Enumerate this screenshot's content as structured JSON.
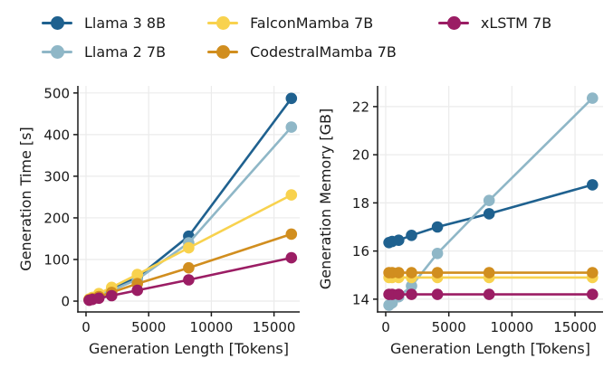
{
  "figure": {
    "background": "#ffffff",
    "text_color": "#1a1a1a",
    "grid_color": "#ebebeb",
    "spine_color": "#1a1a1a"
  },
  "legend": {
    "position": "top",
    "items": [
      {
        "label": "Llama 3 8B",
        "color": "#1f618f"
      },
      {
        "label": "Llama 2 7B",
        "color": "#8fb7c7"
      },
      {
        "label": "FalconMamba 7B",
        "color": "#f8d24e"
      },
      {
        "label": "CodestralMamba 7B",
        "color": "#d18e1f"
      },
      {
        "label": "xLSTM 7B",
        "color": "#9b1d64"
      }
    ]
  },
  "chart_data": [
    {
      "type": "line",
      "title": "",
      "xlabel": "Generation Length [Tokens]",
      "ylabel": "Generation Time [s]",
      "x": [
        256,
        512,
        1024,
        2048,
        4096,
        8192,
        16384
      ],
      "xticks": [
        0,
        5000,
        10000,
        15000
      ],
      "yticks": [
        0,
        100,
        200,
        300,
        400,
        500
      ],
      "xlim": [
        -650,
        17050
      ],
      "ylim": [
        -26,
        517
      ],
      "grid": true,
      "markers": true,
      "series": [
        {
          "name": "Llama 3 8B",
          "color": "#1f618f",
          "values": [
            4,
            8,
            15,
            29,
            57,
            156,
            487
          ]
        },
        {
          "name": "Llama 2 7B",
          "color": "#8fb7c7",
          "values": [
            3.5,
            7,
            14,
            26,
            52,
            140,
            418
          ]
        },
        {
          "name": "FalconMamba 7B",
          "color": "#f8d24e",
          "values": [
            5,
            9,
            18,
            33,
            64,
            128,
            255
          ]
        },
        {
          "name": "CodestralMamba 7B",
          "color": "#d18e1f",
          "values": [
            3,
            6,
            11,
            21,
            42,
            80,
            161
          ]
        },
        {
          "name": "xLSTM 7B",
          "color": "#9b1d64",
          "values": [
            2,
            4,
            7,
            13,
            26,
            51,
            104
          ]
        }
      ]
    },
    {
      "type": "line",
      "title": "",
      "xlabel": "Generation Length [Tokens]",
      "ylabel": "Generation Memory [GB]",
      "x": [
        256,
        512,
        1024,
        2048,
        4096,
        8192,
        16384
      ],
      "xticks": [
        0,
        5000,
        10000,
        15000
      ],
      "yticks": [
        14,
        16,
        18,
        20,
        22
      ],
      "xlim": [
        -645,
        17220
      ],
      "ylim": [
        13.47,
        22.86
      ],
      "grid": true,
      "markers": true,
      "series": [
        {
          "name": "Llama 3 8B",
          "color": "#1f618f",
          "values": [
            16.35,
            16.4,
            16.45,
            16.65,
            17.0,
            17.55,
            18.75
          ]
        },
        {
          "name": "Llama 2 7B",
          "color": "#8fb7c7",
          "values": [
            13.75,
            13.85,
            14.1,
            14.55,
            15.9,
            18.1,
            22.35
          ]
        },
        {
          "name": "FalconMamba 7B",
          "color": "#f8d24e",
          "values": [
            14.9,
            14.9,
            14.9,
            14.9,
            14.9,
            14.9,
            14.9
          ]
        },
        {
          "name": "CodestralMamba 7B",
          "color": "#d18e1f",
          "values": [
            15.1,
            15.1,
            15.1,
            15.1,
            15.1,
            15.1,
            15.1
          ]
        },
        {
          "name": "xLSTM 7B",
          "color": "#9b1d64",
          "values": [
            14.2,
            14.2,
            14.2,
            14.2,
            14.2,
            14.2,
            14.2
          ]
        }
      ]
    }
  ]
}
